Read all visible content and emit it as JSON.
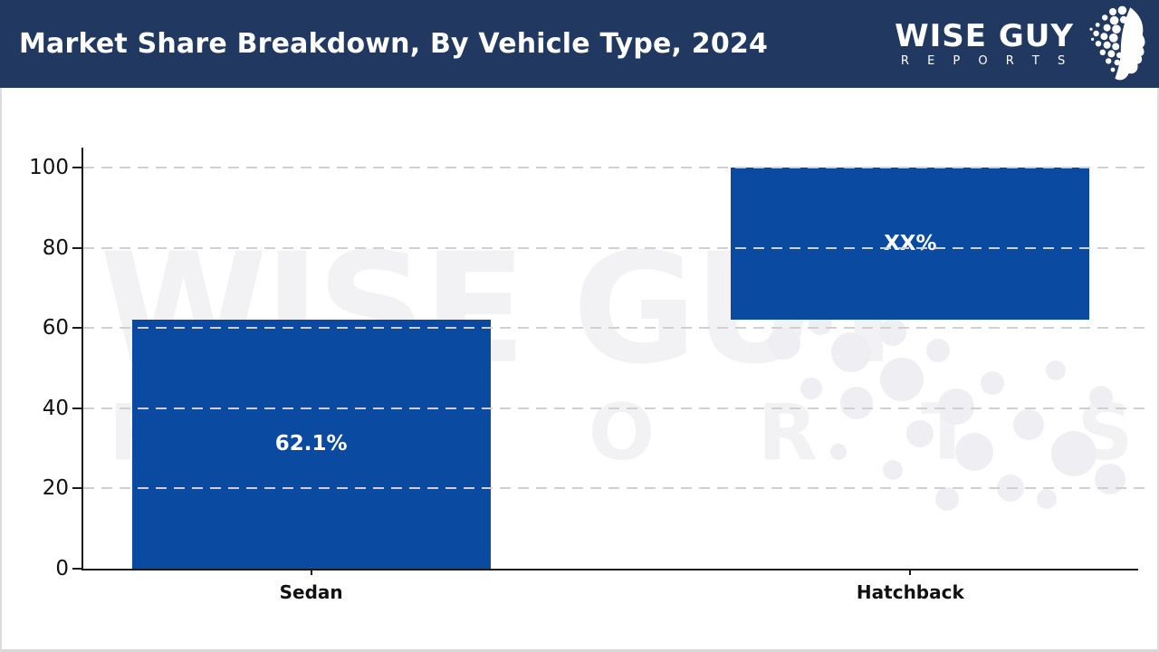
{
  "header": {
    "title": "Market Share Breakdown, By Vehicle Type, 2024",
    "logo": {
      "wordmark": "WISE GUY",
      "subtext": "R E P O R T S"
    }
  },
  "watermark": {
    "line1": "WISE GUY",
    "line2": "R E P O R T S"
  },
  "chart_data": {
    "type": "bar",
    "title": "Market Share Breakdown, By Vehicle Type, 2024",
    "categories": [
      "Sedan",
      "Hatchback"
    ],
    "bars": [
      {
        "category": "Sedan",
        "start": 0,
        "end": 62.1,
        "label": "62.1%"
      },
      {
        "category": "Hatchback",
        "start": 62.1,
        "end": 100,
        "label": "XX%"
      }
    ],
    "yticks": [
      0,
      20,
      40,
      60,
      80,
      100
    ],
    "ylim": [
      0,
      105
    ],
    "xlabel": "",
    "ylabel": "",
    "grid": "horizontal-dashed",
    "legend": "none",
    "colors": {
      "bar": "#0b4aa1",
      "header_bg": "#213960",
      "grid": "#d0d0d0",
      "axis": "#1a1a1a",
      "bar_label": "#ffffff",
      "watermark": "#f2f2f5"
    }
  }
}
